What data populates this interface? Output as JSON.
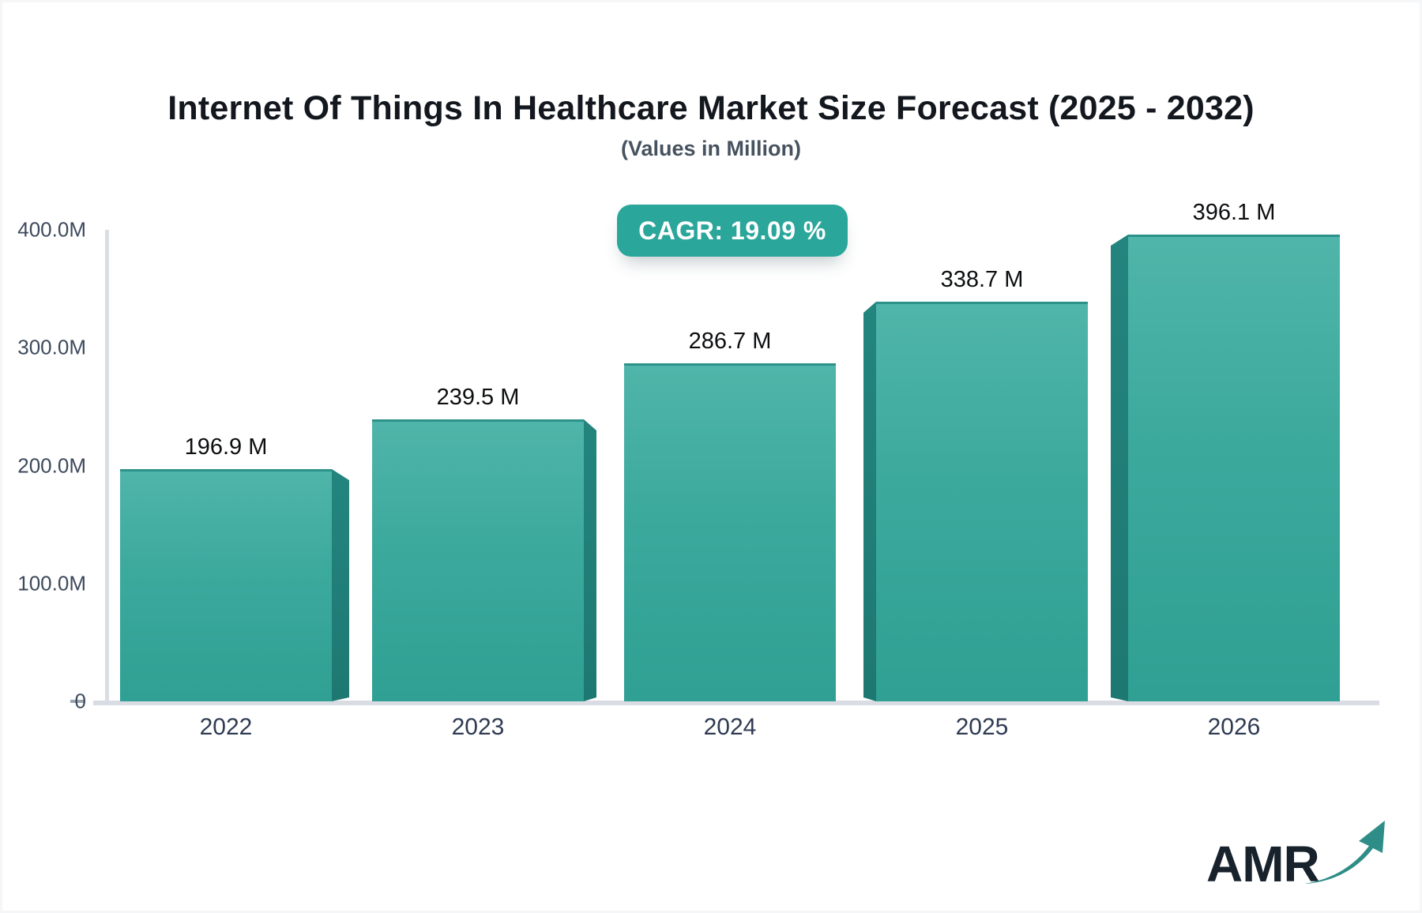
{
  "page": {
    "background": "#ffffff",
    "border_color": "#f5f6f8"
  },
  "chart_data": {
    "type": "bar",
    "title": "Internet Of Things In Healthcare Market Size Forecast (2025 - 2032)",
    "subtitle": "(Values in Million)",
    "annotation": "CAGR: 19.09 %",
    "categories": [
      "2022",
      "2023",
      "2024",
      "2025",
      "2026"
    ],
    "values": [
      196.9,
      239.5,
      286.7,
      338.7,
      396.1
    ],
    "value_labels": [
      "196.9 M",
      "239.5 M",
      "286.7 M",
      "338.7 M",
      "396.1 M"
    ],
    "unit": "Million",
    "xlabel": "",
    "ylabel": "",
    "ylim": [
      0,
      400
    ],
    "yticks": [
      {
        "value": 0,
        "label": "0"
      },
      {
        "value": 100,
        "label": "100.0M"
      },
      {
        "value": 200,
        "label": "200.0M"
      },
      {
        "value": 300,
        "label": "300.0M"
      },
      {
        "value": 400,
        "label": "400.0M"
      }
    ],
    "grid": false,
    "legend": null,
    "style": "3d-perspective-bars",
    "bar_colors": {
      "face_top": "#50B5AA",
      "face_mid": "#3CA99D",
      "face_bottom": "#2FA093",
      "top_edge": "#2C9289",
      "side_top": "#23857E",
      "side_bottom": "#1E7872"
    },
    "badge_color": "#2BA69B",
    "axis_line_color": "#dadde3",
    "tick_text_color": "#3d4a5c",
    "category_text_color": "#2f3b52"
  },
  "logo": {
    "text": "AMR",
    "text_color": "#18222c",
    "arrow_icon": "growth-arrow-icon",
    "arrow_color": "#2E8D87"
  }
}
